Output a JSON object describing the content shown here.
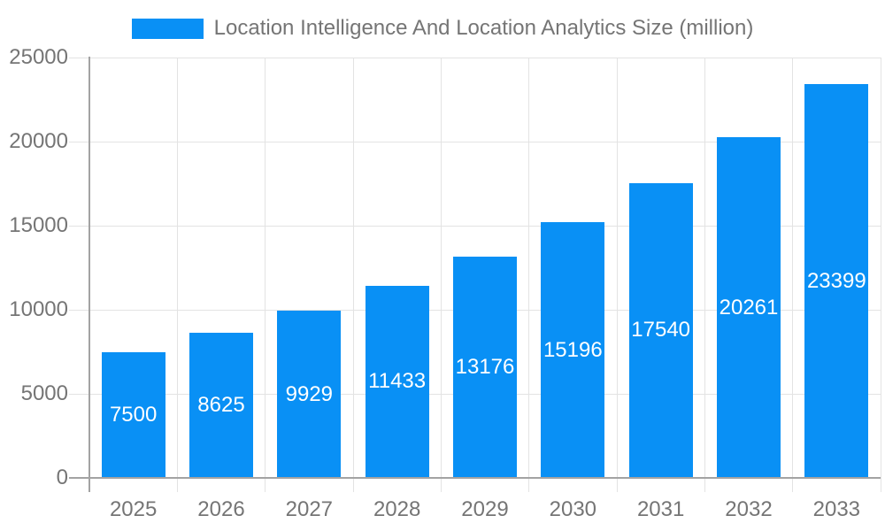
{
  "legend": {
    "label": "Location Intelligence And Location Analytics Size (million)"
  },
  "chart_data": {
    "type": "bar",
    "title": "Location Intelligence And Location Analytics Size (million)",
    "categories": [
      "2025",
      "2026",
      "2027",
      "2028",
      "2029",
      "2030",
      "2031",
      "2032",
      "2033"
    ],
    "values": [
      7500,
      8625,
      9929,
      11433,
      13176,
      15196,
      17540,
      20261,
      23399
    ],
    "value_labels": [
      "7500",
      "8625",
      "9929",
      "11433",
      "13176",
      "15196",
      "17540",
      "20261",
      "23399"
    ],
    "xlabel": "",
    "ylabel": "",
    "ylim": [
      0,
      25000
    ],
    "yticks": [
      0,
      5000,
      10000,
      15000,
      20000,
      25000
    ],
    "grid": true,
    "legend_position": "top",
    "colors": {
      "bar": "#0990f5",
      "value_label_text": "#ffffff",
      "axis_text": "#757575",
      "title_text": "#757575",
      "axis_line": "#a3a3a3",
      "gridline": "#e3e3e3",
      "background": "#ffffff"
    }
  }
}
